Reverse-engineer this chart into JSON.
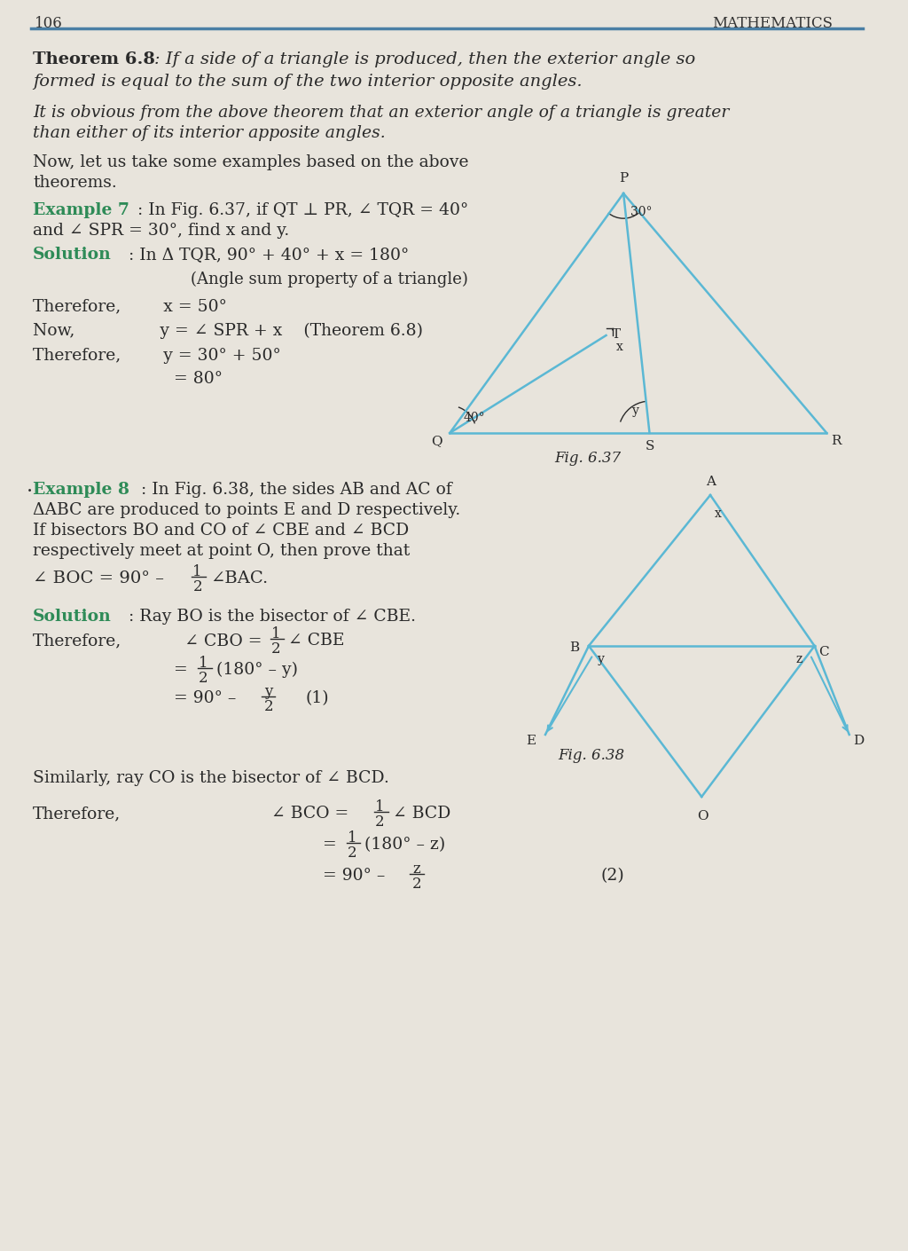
{
  "bg_color": "#e8e4dc",
  "text_color": "#2a2a2a",
  "blue_color": "#4a7fa5",
  "cyan_color": "#5bb8d4",
  "example_color": "#2e8b57",
  "solution_color": "#2e8b57",
  "page_number": "106",
  "subject": "MATHEMATICS",
  "theorem_label": "Theorem 6.8",
  "example7_label": "Example 7",
  "solution7_label": "Solution",
  "fig637_label": "Fig. 6.37",
  "example8_label": "Example 8",
  "solution8_label": "Solution",
  "fig638_label": "Fig. 6.38"
}
